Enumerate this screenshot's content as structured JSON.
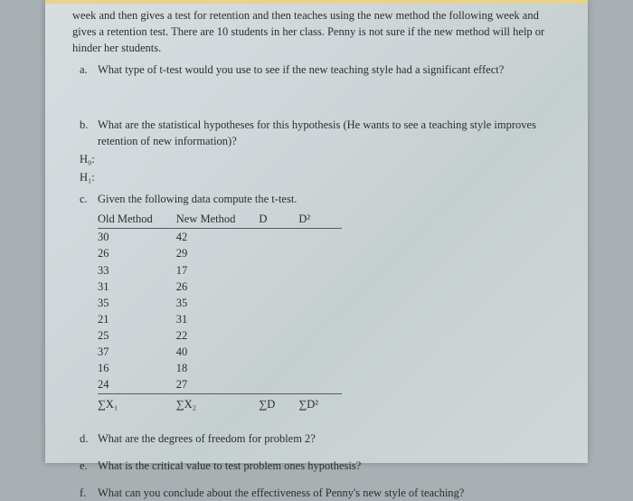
{
  "intro": "week and then gives a test for retention and then teaches using the new method the following week and gives a retention test. There are 10 students in her class. Penny is not sure if the new method will help or hinder her students.",
  "qa": {
    "letter": "a.",
    "text": "What type of t-test would you use to see if the new teaching style had a significant effect?"
  },
  "qb": {
    "letter": "b.",
    "text": "What are the statistical hypotheses for this hypothesis (He wants to see a teaching style improves retention of new information)?",
    "h0": "H₀:",
    "h1": "H₁:"
  },
  "qc": {
    "letter": "c.",
    "text": "Given the following data compute the t-test.",
    "headers": {
      "c1": "Old Method",
      "c2": "New Method",
      "c3": "D",
      "c4": "D²"
    },
    "rows": [
      {
        "c1": "30",
        "c2": "42"
      },
      {
        "c1": "26",
        "c2": "29"
      },
      {
        "c1": "33",
        "c2": "17"
      },
      {
        "c1": "31",
        "c2": "26"
      },
      {
        "c1": "35",
        "c2": "35"
      },
      {
        "c1": "21",
        "c2": "31"
      },
      {
        "c1": "25",
        "c2": "22"
      },
      {
        "c1": "37",
        "c2": "40"
      },
      {
        "c1": "16",
        "c2": "18"
      },
      {
        "c1": "24",
        "c2": "27"
      }
    ],
    "sums": {
      "c1": "∑X₁",
      "c2": "∑X₂",
      "c3": "∑D",
      "c4": "∑D²"
    }
  },
  "qd": {
    "letter": "d.",
    "text": "What are the degrees of freedom for problem 2?"
  },
  "qe": {
    "letter": "e.",
    "text": "What is the critical value to test problem ones hypothesis?"
  },
  "qf": {
    "letter": "f.",
    "text": "What can you conclude about the effectiveness of Penny's new style of teaching?"
  }
}
